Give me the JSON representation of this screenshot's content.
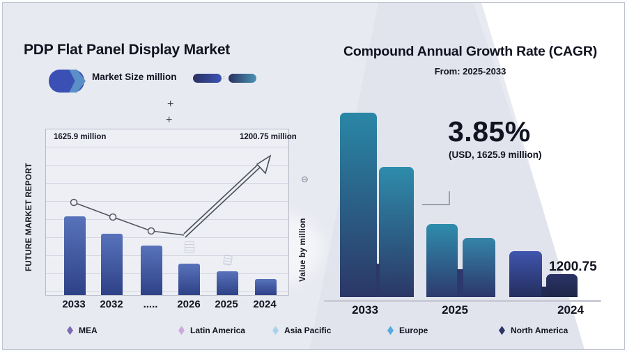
{
  "left": {
    "title": "PDP Flat Panel Display Market",
    "series_label": "Market Size million",
    "ratio_separator": ":",
    "watermark": "FUTURE MARKET REPORT",
    "chart": {
      "start_label": "1625.9 million",
      "end_label": "1200.75 million",
      "ylabel": "Value by million"
    }
  },
  "right": {
    "title": "Compound Annual Growth Rate (CAGR)",
    "subtitle": "From: 2025-2033",
    "cagr": "3.85%",
    "cagr_note": "(USD, 1625.9 million)",
    "value_label": "1200.75"
  },
  "icons": {
    "plus": "+",
    "minus_circle": "⊖"
  },
  "region_legend": [
    {
      "label": "MEA",
      "color": "#7e6bb5"
    },
    {
      "label": "Latin America",
      "color": "#cfa8dc"
    },
    {
      "label": "Asia Pacific",
      "color": "#a9d3ea"
    },
    {
      "label": "Europe",
      "color": "#58aadc"
    },
    {
      "label": "North America",
      "color": "#2e3466"
    }
  ],
  "colors": {
    "left_bar_top": "#5873bb",
    "left_bar_bottom": "#2e4187",
    "right_bar_teal_top": "#2a87a6",
    "right_bar_navy_bottom": "#2b3766",
    "right_bar_blue_top": "#4055ae",
    "background": "#e8eaf1"
  },
  "chart_data": [
    {
      "type": "bar",
      "title": "PDP Flat Panel Display Market — Market Size million",
      "categories": [
        "2033",
        "2032",
        ".....",
        "2026",
        "2025",
        "2024"
      ],
      "values_relative": [
        113,
        88,
        71,
        45,
        34,
        23
      ],
      "known_values": {
        "2033": 1625.9,
        "2024": 1200.75
      },
      "unit": "USD million",
      "ylabel": "Value by million",
      "x_axis_reversed": true,
      "grid": true,
      "annotations": [
        "1625.9 million",
        "1200.75 million"
      ],
      "overlay_line_relative": [
        135,
        114,
        94,
        88
      ],
      "trend_arrow": "up-right, tip at relative height 194"
    },
    {
      "type": "bar",
      "title": "Compound Annual Growth Rate (CAGR)",
      "subtitle": "From: 2025-2033",
      "categories": [
        "2033",
        "2025",
        "2024"
      ],
      "series": [
        {
          "name": "primary",
          "values_relative": [
            265,
            105,
            66
          ]
        },
        {
          "name": "secondary",
          "values_relative": [
            187,
            85,
            33
          ]
        }
      ],
      "cagr": "3.85%",
      "cagr_basis": "(USD, 1625.9 million)",
      "value_label": "1200.75",
      "grid": false
    }
  ]
}
